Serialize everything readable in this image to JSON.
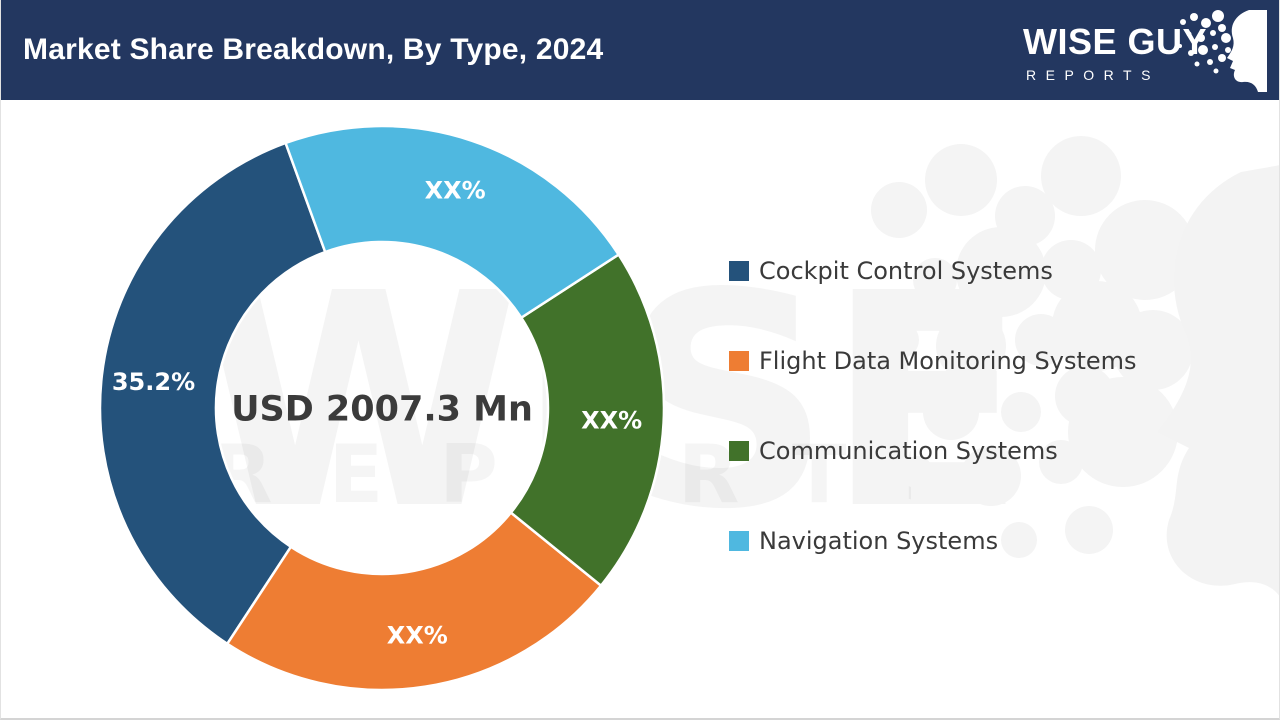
{
  "header": {
    "title": "Market Share Breakdown, By Type, 2024",
    "logo": {
      "line1": "WISE GUY",
      "line2": "REPORTS"
    }
  },
  "watermark": {
    "line1": "WISE GUY",
    "line2": "REPORTS"
  },
  "chart_data": {
    "type": "pie",
    "subtype": "donut",
    "title": "Market Share Breakdown, By Type, 2024",
    "center_label": "USD 2007.3 Mn",
    "start_angle_deg": 110,
    "direction": "counterclockwise",
    "donut_hole_ratio": 0.59,
    "legend_position": "right",
    "segments": [
      {
        "name": "Cockpit Control Systems",
        "label": "35.2%",
        "value_pct": 35.2,
        "color": "#24527b"
      },
      {
        "name": "Flight Data Monitoring Systems",
        "label": "XX%",
        "value_pct": 23.4,
        "color": "#ee7d33"
      },
      {
        "name": "Communication Systems",
        "label": "XX%",
        "value_pct": 20.0,
        "color": "#41722a"
      },
      {
        "name": "Navigation Systems",
        "label": "XX%",
        "value_pct": 21.4,
        "color": "#4fb8e0"
      }
    ]
  },
  "colors": {
    "header_bg": "#233760",
    "center_text": "#3b3b3b",
    "segment_label_text": "#ffffff"
  }
}
